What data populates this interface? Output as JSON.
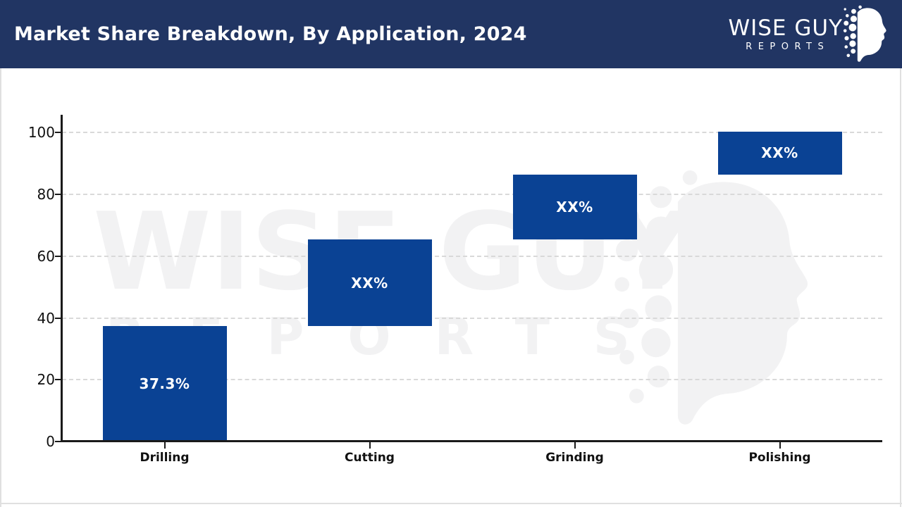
{
  "header": {
    "title": "Market Share Breakdown, By Application, 2024",
    "logo": {
      "line1": "WISE GUY",
      "line2": "REPORTS"
    }
  },
  "watermark": {
    "line1": "WISE GUY",
    "line2": "REPORTS"
  },
  "colors": {
    "header_bg": "#213563",
    "bar": "#0a4294",
    "bar_label": "#ffffff",
    "gridline": "#d9d9d9",
    "axis": "#1a1a1a",
    "watermark": "#f2f2f3"
  },
  "chart_data": {
    "type": "bar",
    "subtype": "waterfall",
    "title": "Market Share Breakdown, By Application, 2024",
    "xlabel": "",
    "ylabel": "",
    "categories": [
      "Drilling",
      "Cutting",
      "Grinding",
      "Polishing"
    ],
    "segments": [
      {
        "category": "Drilling",
        "from": 0,
        "to": 37.3,
        "label": "37.3%"
      },
      {
        "category": "Cutting",
        "from": 37.3,
        "to": 65.4,
        "label": "XX%"
      },
      {
        "category": "Grinding",
        "from": 65.4,
        "to": 86.5,
        "label": "XX%"
      },
      {
        "category": "Polishing",
        "from": 86.5,
        "to": 100.4,
        "label": "XX%"
      }
    ],
    "yticks": [
      0,
      20,
      40,
      60,
      80,
      100
    ],
    "ylim": [
      0,
      105
    ],
    "grid": "dashed-horizontal",
    "legend": "none"
  }
}
